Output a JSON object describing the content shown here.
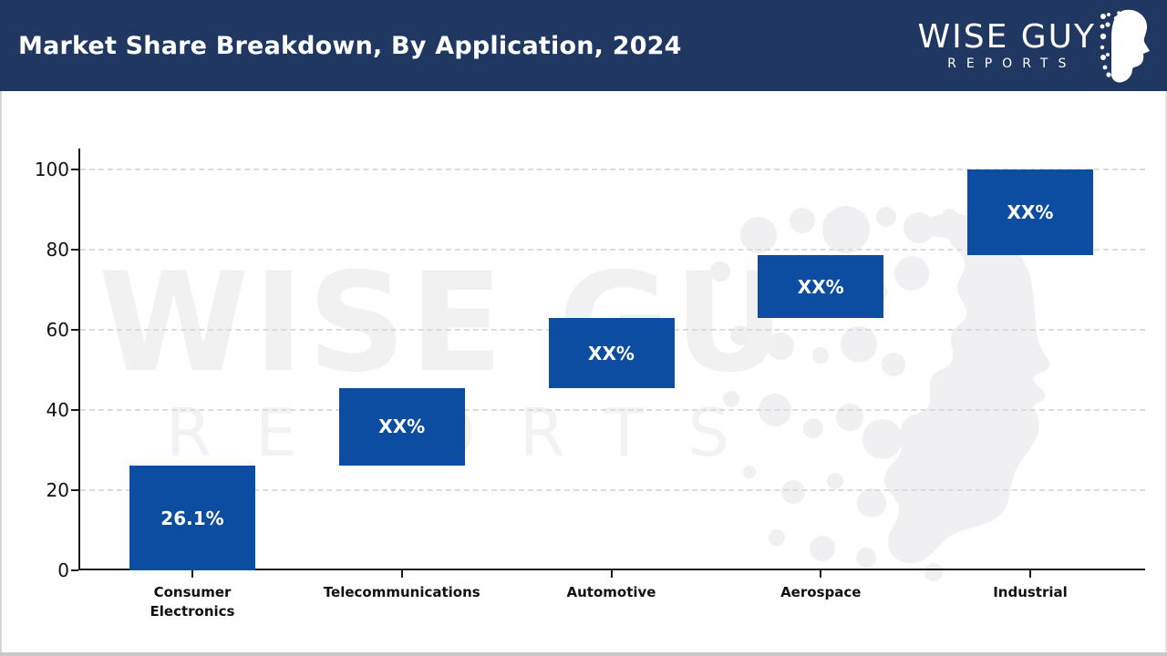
{
  "header": {
    "title": "Market Share Breakdown, By Application, 2024",
    "logo": {
      "line1": "WISE GUY",
      "line2": "REPORTS",
      "face_icon": "dotted-head-profile"
    }
  },
  "watermark": {
    "line1": "WISE GUY",
    "line2": "REPORTS",
    "head_icon": "dotted-head-profile"
  },
  "colors": {
    "header_bg": "#1f3761",
    "bar": "#0d4da1",
    "grid": "#dcdcdc",
    "axis": "#1a1a1a",
    "bar_label": "#ffffff",
    "watermark": "#f0f0f2"
  },
  "chart_data": {
    "type": "bar",
    "subtype": "waterfall-breakdown",
    "title": "Market Share Breakdown, By Application, 2024",
    "xlabel": "",
    "ylabel": "",
    "ylim": [
      0,
      100
    ],
    "yticks": [
      0,
      20,
      40,
      60,
      80,
      100
    ],
    "grid": "horizontal-dashed",
    "legend": "none",
    "categories": [
      "Consumer Electronics",
      "Telecommunications",
      "Automotive",
      "Aerospace",
      "Industrial"
    ],
    "segments": [
      {
        "label": "Consumer Electronics",
        "label_lines": [
          "Consumer",
          "Electronics"
        ],
        "start": 0,
        "end": 26.1,
        "display": "26.1%"
      },
      {
        "label": "Telecommunications",
        "label_lines": [
          "Telecommunications"
        ],
        "start": 26.1,
        "end": 45.5,
        "display": "XX%"
      },
      {
        "label": "Automotive",
        "label_lines": [
          "Automotive"
        ],
        "start": 45.5,
        "end": 62.9,
        "display": "XX%"
      },
      {
        "label": "Aerospace",
        "label_lines": [
          "Aerospace"
        ],
        "start": 62.9,
        "end": 78.6,
        "display": "XX%"
      },
      {
        "label": "Industrial",
        "label_lines": [
          "Industrial"
        ],
        "start": 78.6,
        "end": 100,
        "display": "XX%"
      }
    ]
  }
}
